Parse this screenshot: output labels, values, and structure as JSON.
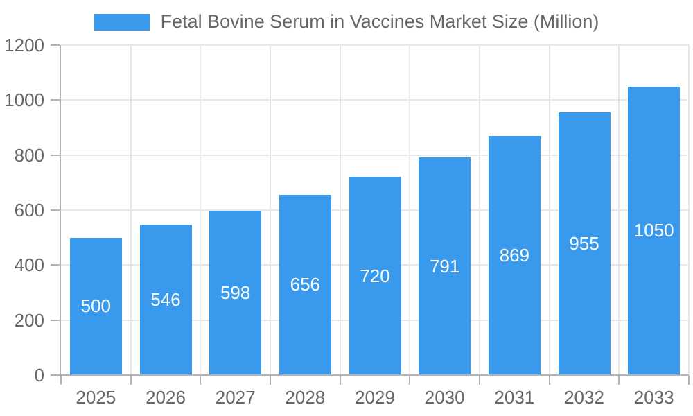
{
  "chart_data": {
    "type": "bar",
    "title": "Fetal Bovine Serum in Vaccines Market Size (Million)",
    "categories": [
      "2025",
      "2026",
      "2027",
      "2028",
      "2029",
      "2030",
      "2031",
      "2032",
      "2033"
    ],
    "values": [
      500,
      546,
      598,
      656,
      720,
      791,
      869,
      955,
      1050
    ],
    "ylim": [
      0,
      1200
    ],
    "ytick_step": 200,
    "yticks": [
      0,
      200,
      400,
      600,
      800,
      1000,
      1200
    ],
    "grid": true,
    "legend_position": "top-center",
    "bar_value_label_position": "inside-center",
    "colors": {
      "bar": "#399AED",
      "bar_label": "#FFFFFF",
      "grid_line": "#E7E7E7",
      "axis_line": "#B3B3B3",
      "text": "#666666"
    }
  }
}
